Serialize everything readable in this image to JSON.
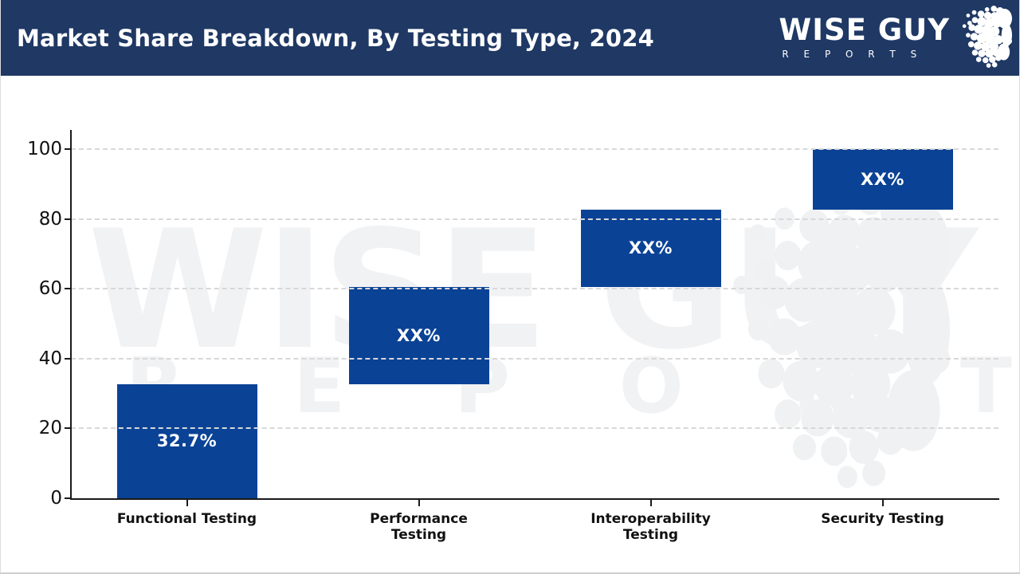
{
  "page": {
    "bg_color": "#ffffff",
    "border_color": "#cfcfcf"
  },
  "header": {
    "bg_color": "#1f3864",
    "title": "Market Share Breakdown, By Testing Type, 2024",
    "logo": {
      "wordmark": "WISE GUY",
      "tagline": "R E P O R T S"
    }
  },
  "watermark": {
    "line1": "WISE GUY",
    "line2": "R E P O R T S"
  },
  "chart_data": {
    "type": "bar",
    "variant": "waterfall",
    "title": "Market Share Breakdown, By Testing Type, 2024",
    "categories": [
      "Functional Testing",
      "Performance\nTesting",
      "Interoperability\nTesting",
      "Security Testing"
    ],
    "segments": [
      {
        "category": "Functional Testing",
        "start": 0,
        "end": 32.7,
        "label": "32.7%"
      },
      {
        "category": "Performance Testing",
        "start": 32.7,
        "end": 60.5,
        "label": "XX%"
      },
      {
        "category": "Interoperability Testing",
        "start": 60.5,
        "end": 82.7,
        "label": "XX%"
      },
      {
        "category": "Security Testing",
        "start": 82.7,
        "end": 100,
        "label": "XX%"
      }
    ],
    "yticks": [
      0,
      20,
      40,
      60,
      80,
      100
    ],
    "ylim": [
      0,
      106
    ],
    "xlabel": "",
    "ylabel": "",
    "grid": "horizontal-dashed",
    "legend": "none",
    "bar_color": "#0a4296",
    "bar_label_color": "#ffffff",
    "axis_color": "#1a1a1a",
    "grid_color": "#d8d8d8"
  }
}
